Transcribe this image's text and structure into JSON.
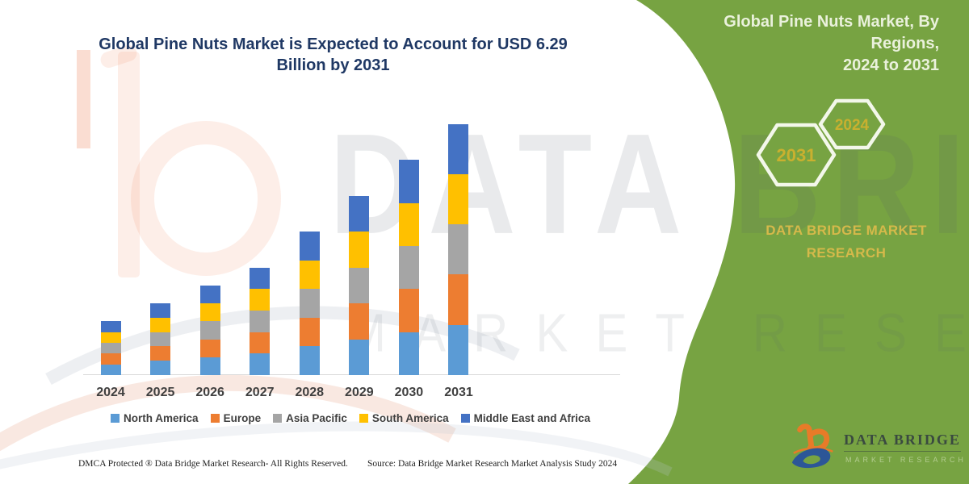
{
  "header": {
    "title_line1": "Global Pine Nuts Market is Expected to Account for USD 6.29",
    "title_line2": "Billion by 2031"
  },
  "side_panel": {
    "heading_line1": "Global Pine Nuts Market, By Regions,",
    "heading_line2": "2024 to 2031",
    "hexagons": [
      {
        "label": "2031"
      },
      {
        "label": "2024"
      }
    ],
    "brand": "DATA BRIDGE MARKET RESEARCH"
  },
  "chart_data": {
    "type": "bar",
    "stacked": true,
    "unit": "USD Billion",
    "title": "Global Pine Nuts Market is Expected to Account for USD 6.29 Billion by 2031",
    "categories": [
      "2024",
      "2025",
      "2026",
      "2027",
      "2028",
      "2029",
      "2030",
      "2031"
    ],
    "series": [
      {
        "name": "North America",
        "color": "#5B9BD5",
        "values": [
          0.27,
          0.36,
          0.45,
          0.54,
          0.72,
          0.9,
          1.08,
          1.26
        ]
      },
      {
        "name": "Europe",
        "color": "#ED7D31",
        "values": [
          0.27,
          0.36,
          0.45,
          0.54,
          0.72,
          0.9,
          1.08,
          1.26
        ]
      },
      {
        "name": "Asia Pacific",
        "color": "#A5A5A5",
        "values": [
          0.27,
          0.36,
          0.45,
          0.54,
          0.72,
          0.9,
          1.08,
          1.26
        ]
      },
      {
        "name": "South America",
        "color": "#FFC000",
        "values": [
          0.27,
          0.36,
          0.45,
          0.54,
          0.72,
          0.9,
          1.08,
          1.26
        ]
      },
      {
        "name": "Middle East and Africa",
        "color": "#4472C4",
        "values": [
          0.27,
          0.36,
          0.45,
          0.54,
          0.72,
          0.9,
          1.08,
          1.26
        ]
      }
    ],
    "totals_estimated": [
      1.35,
      1.8,
      2.25,
      2.7,
      3.6,
      4.5,
      5.4,
      6.3
    ],
    "xlabel": "",
    "ylabel": "",
    "grid": false,
    "legend_position": "bottom",
    "axis_line_color": "#D9D9D9"
  },
  "watermark": {
    "primary": "DATA BRIDGE",
    "secondary": "MARKET RESEARCH"
  },
  "logo": {
    "name": "DATA BRIDGE",
    "tagline": "MARKET RESEARCH"
  },
  "footer": {
    "left": "DMCA Protected ® Data Bridge Market Research-  All Rights Reserved.",
    "right": "Source: Data Bridge Market Research  Market Analysis Study 2024"
  },
  "colors": {
    "panel_green": "#77A342",
    "title_blue": "#1F3864",
    "hex_label_gold": "#C9B02F",
    "brand_yellow": "#D5B94A",
    "hex_stroke": "#F3F7EA"
  }
}
